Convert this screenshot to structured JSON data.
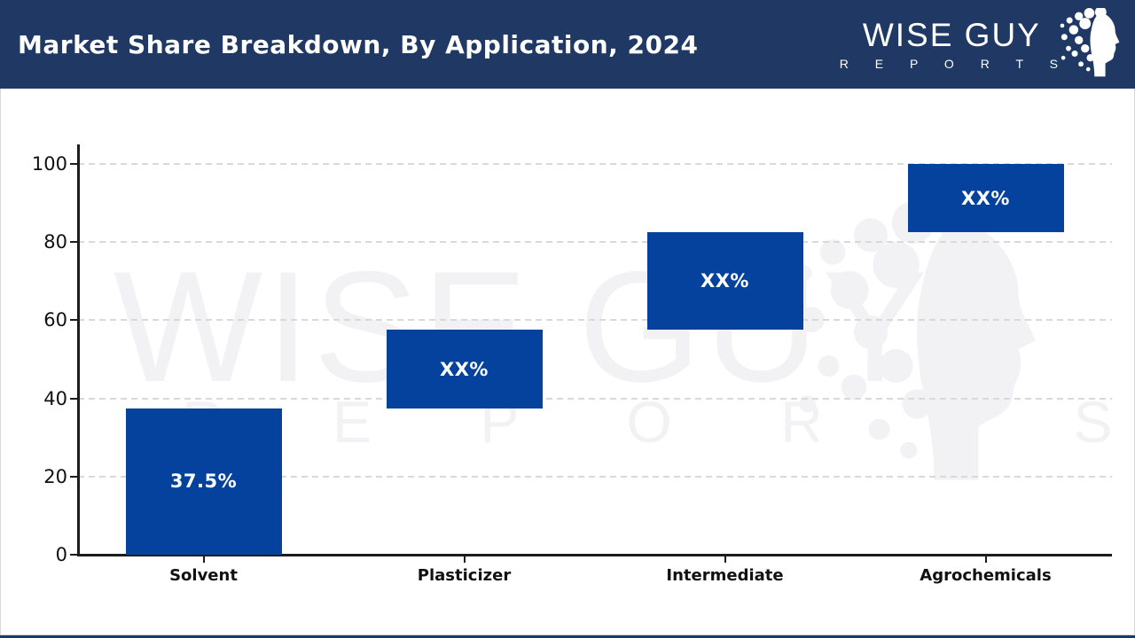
{
  "header": {
    "title": "Market Share Breakdown, By Application, 2024",
    "bg_color": "#1f3864",
    "logo": {
      "word": "WISE GUY",
      "reports": "R E P O R T S"
    }
  },
  "watermark": {
    "word": "WISE GUY",
    "reports": "R E P O R T S"
  },
  "chart_data": {
    "type": "bar",
    "subtype": "waterfall",
    "title": "Market Share Breakdown, By Application, 2024",
    "categories": [
      "Solvent",
      "Plasticizer",
      "Intermediate",
      "Agrochemicals"
    ],
    "segments": [
      {
        "category": "Solvent",
        "start": 0,
        "end": 37.5,
        "label": "37.5%"
      },
      {
        "category": "Plasticizer",
        "start": 37.5,
        "end": 57.5,
        "label": "XX%"
      },
      {
        "category": "Intermediate",
        "start": 57.5,
        "end": 82.5,
        "label": "XX%"
      },
      {
        "category": "Agrochemicals",
        "start": 82.5,
        "end": 100,
        "label": "XX%"
      }
    ],
    "xlabel": "",
    "ylabel": "",
    "ylim": [
      0,
      100
    ],
    "yticks": [
      0,
      20,
      40,
      60,
      80,
      100
    ],
    "grid": "horizontal dashed",
    "legend": "none",
    "bar_color": "#05429e",
    "bar_label_color": "#ffffff",
    "axis_color": "#1c1c1c",
    "gridline_color": "#d9d9d9"
  }
}
